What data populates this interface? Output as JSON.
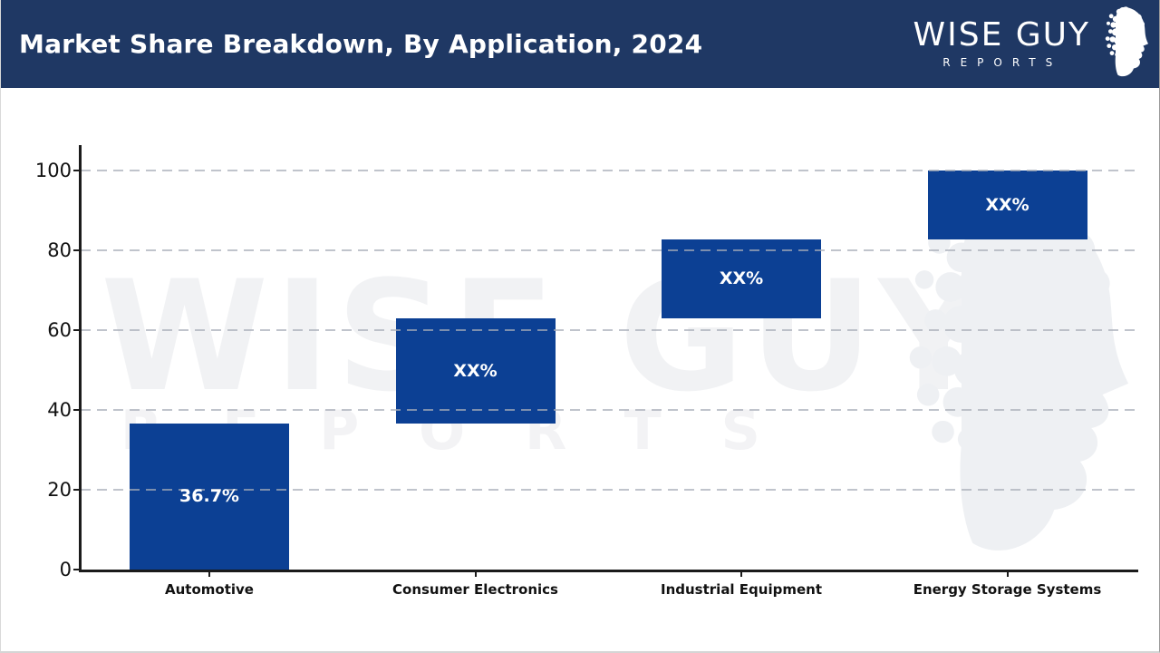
{
  "header": {
    "title": "Market Share Breakdown, By Application, 2024",
    "bg_color": "#1f3864",
    "logo": {
      "name": "WISE GUY",
      "sub": "REPORTS"
    }
  },
  "watermark": {
    "line1": "WISE GUY",
    "line2": "REPORTS"
  },
  "chart_data": {
    "type": "bar",
    "subtype": "waterfall",
    "title": "Market Share Breakdown, By Application, 2024",
    "categories": [
      "Automotive",
      "Consumer Electronics",
      "Industrial Equipment",
      "Energy Storage Systems"
    ],
    "series": [
      {
        "name": "Market share by application (cumulative %)",
        "segments": [
          {
            "category": "Automotive",
            "start": 0,
            "end": 36.7,
            "label": "36.7%"
          },
          {
            "category": "Consumer Electronics",
            "start": 36.7,
            "end": 63.0,
            "label": "XX%"
          },
          {
            "category": "Industrial Equipment",
            "start": 63.0,
            "end": 82.8,
            "label": "XX%"
          },
          {
            "category": "Energy Storage Systems",
            "start": 82.8,
            "end": 100.0,
            "label": "XX%"
          }
        ]
      }
    ],
    "y_ticks": [
      0,
      20,
      40,
      60,
      80,
      100
    ],
    "ylim": [
      0,
      106
    ],
    "xlabel": "",
    "ylabel": "",
    "grid": "horizontal dashed, drawn above bars",
    "legend": "none",
    "bar_color": "#0c4094",
    "bar_label_color": "#ffffff",
    "axis_color": "#1b1b1b"
  }
}
